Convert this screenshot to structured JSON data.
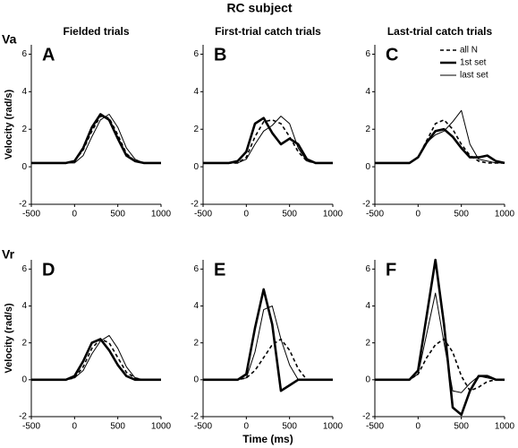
{
  "title": "RC subject",
  "chart_data": [
    {
      "type": "line",
      "title": "Fielded trials",
      "panel": "A",
      "row_label": "Va",
      "ylabel": "Velocity (rad/s)",
      "x": [
        -500,
        -400,
        -300,
        -200,
        -100,
        0,
        100,
        200,
        300,
        400,
        500,
        600,
        700,
        800,
        900,
        1000
      ],
      "xlim": [
        -500,
        1000
      ],
      "xticks": [
        -500,
        0,
        500,
        1000
      ],
      "ylim": [
        -2,
        6.5
      ],
      "yticks": [
        -2,
        0,
        2,
        4,
        6
      ],
      "series": [
        {
          "color": "#000",
          "line_style": "dashed",
          "values": [
            0.2,
            0.2,
            0.2,
            0.2,
            0.2,
            0.3,
            0.9,
            1.9,
            2.7,
            2.6,
            1.7,
            0.7,
            0.3,
            0.2,
            0.2,
            0.2
          ]
        },
        {
          "color": "#000",
          "line_style": "thick",
          "values": [
            0.2,
            0.2,
            0.2,
            0.2,
            0.2,
            0.3,
            1.0,
            2.1,
            2.8,
            2.5,
            1.5,
            0.6,
            0.3,
            0.2,
            0.2,
            0.2
          ]
        },
        {
          "color": "#000",
          "line_style": "thin",
          "values": [
            0.2,
            0.2,
            0.2,
            0.2,
            0.2,
            0.2,
            0.6,
            1.6,
            2.5,
            2.8,
            2.1,
            1.0,
            0.4,
            0.2,
            0.2,
            0.2
          ]
        }
      ]
    },
    {
      "type": "line",
      "title": "First-trial  catch trials",
      "panel": "B",
      "x": [
        -500,
        -400,
        -300,
        -200,
        -100,
        0,
        100,
        200,
        300,
        400,
        500,
        600,
        700,
        800,
        900,
        1000
      ],
      "xlim": [
        -500,
        1000
      ],
      "xticks": [
        -500,
        0,
        500,
        1000
      ],
      "ylim": [
        -2,
        6.5
      ],
      "yticks": [
        -2,
        0,
        2,
        4,
        6
      ],
      "series": [
        {
          "color": "#000",
          "line_style": "dashed",
          "values": [
            0.2,
            0.2,
            0.2,
            0.2,
            0.2,
            0.5,
            1.6,
            2.4,
            2.5,
            2.3,
            1.6,
            0.8,
            0.3,
            0.2,
            0.2,
            0.2
          ]
        },
        {
          "color": "#000",
          "line_style": "thick",
          "values": [
            0.2,
            0.2,
            0.2,
            0.2,
            0.3,
            0.8,
            2.3,
            2.6,
            1.8,
            1.2,
            1.5,
            1.2,
            0.4,
            0.2,
            0.2,
            0.2
          ]
        },
        {
          "color": "#000",
          "line_style": "thin",
          "values": [
            0.2,
            0.2,
            0.2,
            0.2,
            0.2,
            0.4,
            1.2,
            1.9,
            2.2,
            2.7,
            2.3,
            1.0,
            0.3,
            0.2,
            0.2,
            0.2
          ]
        }
      ]
    },
    {
      "type": "line",
      "title": "Last-trial catch trials",
      "panel": "C",
      "legend": "upper right",
      "x": [
        -500,
        -400,
        -300,
        -200,
        -100,
        0,
        100,
        200,
        300,
        400,
        500,
        600,
        700,
        800,
        900,
        1000
      ],
      "xlim": [
        -500,
        1000
      ],
      "xticks": [
        -500,
        0,
        500,
        1000
      ],
      "ylim": [
        -2,
        6.5
      ],
      "yticks": [
        -2,
        0,
        2,
        4,
        6
      ],
      "series": [
        {
          "name": "all N",
          "color": "#000",
          "line_style": "dashed",
          "values": [
            0.2,
            0.2,
            0.2,
            0.2,
            0.2,
            0.5,
            1.4,
            2.3,
            2.5,
            2.0,
            1.2,
            0.6,
            0.3,
            0.2,
            0.2,
            0.2
          ]
        },
        {
          "name": "1st set",
          "color": "#000",
          "line_style": "thick",
          "values": [
            0.2,
            0.2,
            0.2,
            0.2,
            0.2,
            0.5,
            1.3,
            1.9,
            2.0,
            1.6,
            1.0,
            0.5,
            0.5,
            0.6,
            0.3,
            0.2
          ]
        },
        {
          "name": "last set",
          "color": "#000",
          "line_style": "thin",
          "values": [
            0.2,
            0.2,
            0.2,
            0.2,
            0.2,
            0.5,
            1.3,
            1.7,
            1.9,
            2.4,
            3.0,
            1.2,
            0.4,
            0.3,
            0.2,
            0.2
          ]
        }
      ]
    },
    {
      "type": "line",
      "panel": "D",
      "row_label": "Vr",
      "ylabel": "Velocity (rad/s)",
      "x": [
        -500,
        -400,
        -300,
        -200,
        -100,
        0,
        100,
        200,
        300,
        400,
        500,
        600,
        700,
        800,
        900,
        1000
      ],
      "xlim": [
        -500,
        1000
      ],
      "xticks": [
        -500,
        0,
        500,
        1000
      ],
      "ylim": [
        -2,
        6.5
      ],
      "yticks": [
        -2,
        0,
        2,
        4,
        6
      ],
      "series": [
        {
          "color": "#000",
          "line_style": "dashed",
          "values": [
            0,
            0,
            0,
            0,
            0,
            0.1,
            0.7,
            1.7,
            2.2,
            2.0,
            1.2,
            0.4,
            0.1,
            0,
            0,
            0
          ]
        },
        {
          "color": "#000",
          "line_style": "thick",
          "values": [
            0,
            0,
            0,
            0,
            0,
            0.2,
            1.0,
            2.0,
            2.2,
            1.6,
            0.8,
            0.2,
            0,
            0,
            0,
            0
          ]
        },
        {
          "color": "#000",
          "line_style": "thin",
          "values": [
            0,
            0,
            0,
            0,
            0,
            0.1,
            0.5,
            1.4,
            2.1,
            2.4,
            1.7,
            0.7,
            0.1,
            0,
            0,
            0
          ]
        }
      ]
    },
    {
      "type": "line",
      "panel": "E",
      "xlabel": "Time (ms)",
      "x": [
        -500,
        -400,
        -300,
        -200,
        -100,
        0,
        100,
        200,
        300,
        400,
        500,
        600,
        700,
        800,
        900,
        1000
      ],
      "xlim": [
        -500,
        1000
      ],
      "xticks": [
        -500,
        0,
        500,
        1000
      ],
      "ylim": [
        -2,
        6.5
      ],
      "yticks": [
        -2,
        0,
        2,
        4,
        6
      ],
      "series": [
        {
          "color": "#000",
          "line_style": "dashed",
          "values": [
            0,
            0,
            0,
            0,
            0,
            0.1,
            0.5,
            1.2,
            1.9,
            2.2,
            1.6,
            0.6,
            0,
            0,
            0,
            0
          ]
        },
        {
          "color": "#000",
          "line_style": "thick",
          "values": [
            0,
            0,
            0,
            0,
            0,
            0.3,
            2.8,
            4.9,
            3.0,
            -0.6,
            -0.3,
            0,
            0,
            0,
            0,
            0
          ]
        },
        {
          "color": "#000",
          "line_style": "thin",
          "values": [
            0,
            0,
            0,
            0,
            0,
            0.1,
            1.5,
            3.8,
            4.0,
            2.2,
            0.8,
            0,
            0,
            0,
            0,
            0
          ]
        }
      ]
    },
    {
      "type": "line",
      "panel": "F",
      "x": [
        -500,
        -400,
        -300,
        -200,
        -100,
        0,
        100,
        200,
        300,
        400,
        500,
        600,
        700,
        800,
        900,
        1000
      ],
      "xlim": [
        -500,
        1000
      ],
      "xticks": [
        -500,
        0,
        500,
        1000
      ],
      "ylim": [
        -2,
        6.5
      ],
      "yticks": [
        -2,
        0,
        2,
        4,
        6
      ],
      "series": [
        {
          "color": "#000",
          "line_style": "dashed",
          "values": [
            0,
            0,
            0,
            0,
            0,
            0.3,
            1.2,
            1.9,
            2.2,
            1.5,
            0.2,
            -0.6,
            -0.4,
            -0.1,
            0,
            0
          ]
        },
        {
          "color": "#000",
          "line_style": "thick",
          "values": [
            0,
            0,
            0,
            0,
            0,
            0.5,
            3.5,
            6.5,
            3.0,
            -1.5,
            -1.9,
            -0.6,
            0.2,
            0.2,
            0,
            0
          ]
        },
        {
          "color": "#000",
          "line_style": "thin",
          "values": [
            0,
            0,
            0,
            0,
            0,
            0.3,
            2.5,
            4.7,
            2.0,
            -0.6,
            -0.7,
            -0.2,
            0.2,
            0.1,
            0,
            0
          ]
        }
      ]
    }
  ]
}
